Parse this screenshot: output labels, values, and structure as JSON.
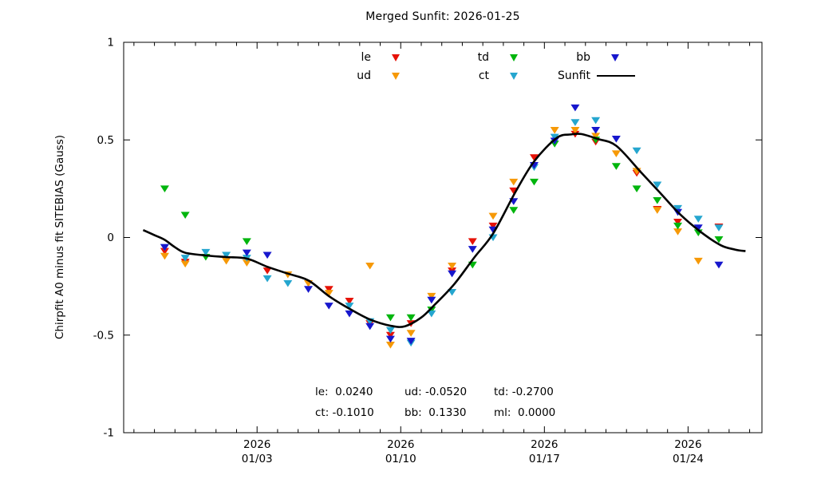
{
  "title": "Merged Sunfit: 2026-01-25",
  "legend": {
    "items": [
      {
        "label": "le",
        "color": "#e61207",
        "type": "triangle-down"
      },
      {
        "label": "ud",
        "color": "#f69907",
        "type": "triangle-down"
      },
      {
        "label": "td",
        "color": "#00b50d",
        "type": "triangle-down"
      },
      {
        "label": "ct",
        "color": "#25a6cf",
        "type": "triangle-down"
      },
      {
        "label": "bb",
        "color": "#1717cd",
        "type": "triangle-down"
      },
      {
        "label": "Sunfit",
        "color": "#000000",
        "type": "line"
      }
    ]
  },
  "fit_stats": {
    "rows": [
      [
        "le:  0.0240",
        "ud: -0.0520",
        "td: -0.2700"
      ],
      [
        "ct: -0.1010",
        "bb:  0.1330",
        "ml:  0.0000"
      ]
    ]
  },
  "chart_data": {
    "type": "scatter",
    "title": "Merged Sunfit: 2026-01-25",
    "xlabel": "",
    "ylabel": "Chirpfit A0 minus fit SITEBIAS (Gauss)",
    "ylim": [
      -1,
      1
    ],
    "xlim_days": [
      -3.5,
      27.6
    ],
    "grid": false,
    "legend_position": "top-center-inside",
    "yticks": [
      {
        "v": 1,
        "label": "1"
      },
      {
        "v": 0.5,
        "label": "0.5"
      },
      {
        "v": 0,
        "label": "0"
      },
      {
        "v": -0.5,
        "label": "-0.5"
      },
      {
        "v": -1,
        "label": "-1"
      }
    ],
    "xticks_major": [
      {
        "day": 3,
        "line1": "2026",
        "line2": "01/03"
      },
      {
        "day": 10,
        "line1": "2026",
        "line2": "01/10"
      },
      {
        "day": 17,
        "line1": "2026",
        "line2": "01/17"
      },
      {
        "day": 24,
        "line1": "2026",
        "line2": "01/24"
      }
    ],
    "xtick_minor_days": {
      "from": -3,
      "to": 27,
      "step": 1
    },
    "series": [
      {
        "name": "le",
        "color": "#e61207",
        "marker": "triangle-down",
        "points": [
          [
            -1.5,
            -0.07
          ],
          [
            -0.5,
            -0.125
          ],
          [
            3.5,
            -0.17
          ],
          [
            6.5,
            -0.265
          ],
          [
            7.5,
            -0.325
          ],
          [
            8.5,
            -0.44
          ],
          [
            9.5,
            -0.5
          ],
          [
            10.5,
            -0.44
          ],
          [
            12.5,
            -0.17
          ],
          [
            13.5,
            -0.02
          ],
          [
            14.5,
            0.06
          ],
          [
            15.5,
            0.24
          ],
          [
            16.5,
            0.41
          ],
          [
            18.5,
            0.53
          ],
          [
            19.5,
            0.49
          ],
          [
            21.5,
            0.33
          ],
          [
            22.5,
            0.145
          ],
          [
            23.5,
            0.08
          ],
          [
            25.5,
            0.055
          ]
        ]
      },
      {
        "name": "ud",
        "color": "#f69907",
        "marker": "triangle-down",
        "points": [
          [
            -1.5,
            -0.095
          ],
          [
            -0.5,
            -0.135
          ],
          [
            1.5,
            -0.12
          ],
          [
            2.5,
            -0.13
          ],
          [
            4.5,
            -0.19
          ],
          [
            5.5,
            -0.235
          ],
          [
            6.5,
            -0.285
          ],
          [
            8.5,
            -0.145
          ],
          [
            9.5,
            -0.55
          ],
          [
            10.5,
            -0.49
          ],
          [
            11.5,
            -0.3
          ],
          [
            12.5,
            -0.145
          ],
          [
            14.5,
            0.11
          ],
          [
            15.5,
            0.285
          ],
          [
            17.5,
            0.55
          ],
          [
            18.5,
            0.55
          ],
          [
            19.5,
            0.52
          ],
          [
            20.5,
            0.43
          ],
          [
            21.5,
            0.34
          ],
          [
            22.5,
            0.14
          ],
          [
            23.5,
            0.03
          ],
          [
            24.5,
            -0.12
          ]
        ]
      },
      {
        "name": "td",
        "color": "#00b50d",
        "marker": "triangle-down",
        "points": [
          [
            -1.5,
            0.25
          ],
          [
            -0.5,
            0.115
          ],
          [
            0.5,
            -0.1
          ],
          [
            2.5,
            -0.02
          ],
          [
            9.5,
            -0.41
          ],
          [
            10.5,
            -0.41
          ],
          [
            11.5,
            -0.37
          ],
          [
            13.5,
            -0.14
          ],
          [
            15.5,
            0.14
          ],
          [
            16.5,
            0.285
          ],
          [
            17.5,
            0.48
          ],
          [
            19.5,
            0.5
          ],
          [
            20.5,
            0.365
          ],
          [
            21.5,
            0.25
          ],
          [
            22.5,
            0.19
          ],
          [
            23.5,
            0.06
          ],
          [
            24.5,
            0.025
          ],
          [
            25.5,
            -0.01
          ]
        ]
      },
      {
        "name": "ct",
        "color": "#25a6cf",
        "marker": "triangle-down",
        "points": [
          [
            -1.5,
            -0.05
          ],
          [
            -0.5,
            -0.105
          ],
          [
            0.5,
            -0.075
          ],
          [
            1.5,
            -0.09
          ],
          [
            2.5,
            -0.105
          ],
          [
            3.5,
            -0.21
          ],
          [
            4.5,
            -0.235
          ],
          [
            7.5,
            -0.35
          ],
          [
            8.5,
            -0.43
          ],
          [
            9.5,
            -0.475
          ],
          [
            10.5,
            -0.54
          ],
          [
            11.5,
            -0.39
          ],
          [
            12.5,
            -0.28
          ],
          [
            14.5,
            0.0
          ],
          [
            16.5,
            0.36
          ],
          [
            17.5,
            0.515
          ],
          [
            18.5,
            0.59
          ],
          [
            19.5,
            0.6
          ],
          [
            21.5,
            0.445
          ],
          [
            22.5,
            0.27
          ],
          [
            23.5,
            0.15
          ],
          [
            24.5,
            0.095
          ],
          [
            25.5,
            0.05
          ]
        ]
      },
      {
        "name": "bb",
        "color": "#1717cd",
        "marker": "triangle-down",
        "points": [
          [
            -1.5,
            -0.05
          ],
          [
            2.5,
            -0.078
          ],
          [
            3.5,
            -0.09
          ],
          [
            5.5,
            -0.265
          ],
          [
            6.5,
            -0.35
          ],
          [
            7.5,
            -0.39
          ],
          [
            8.5,
            -0.455
          ],
          [
            9.5,
            -0.52
          ],
          [
            10.5,
            -0.53
          ],
          [
            11.5,
            -0.32
          ],
          [
            12.5,
            -0.185
          ],
          [
            13.5,
            -0.06
          ],
          [
            14.5,
            0.04
          ],
          [
            15.5,
            0.185
          ],
          [
            16.5,
            0.37
          ],
          [
            17.5,
            0.495
          ],
          [
            18.5,
            0.665
          ],
          [
            19.5,
            0.55
          ],
          [
            20.5,
            0.505
          ],
          [
            23.5,
            0.13
          ],
          [
            24.5,
            0.05
          ],
          [
            25.5,
            -0.14
          ]
        ]
      }
    ],
    "fit_line": {
      "name": "Sunfit",
      "color": "#000000",
      "points": [
        [
          -2.55,
          0.038
        ],
        [
          -2.0,
          0.012
        ],
        [
          -1.5,
          -0.012
        ],
        [
          -1.0,
          -0.05
        ],
        [
          -0.5,
          -0.078
        ],
        [
          0.5,
          -0.092
        ],
        [
          1.5,
          -0.1
        ],
        [
          2.5,
          -0.108
        ],
        [
          3.5,
          -0.15
        ],
        [
          4.5,
          -0.185
        ],
        [
          5.5,
          -0.22
        ],
        [
          6.5,
          -0.3
        ],
        [
          7.5,
          -0.365
        ],
        [
          8.5,
          -0.42
        ],
        [
          9.5,
          -0.452
        ],
        [
          10.2,
          -0.455
        ],
        [
          11.0,
          -0.41
        ],
        [
          11.6,
          -0.35
        ],
        [
          12.6,
          -0.24
        ],
        [
          13.6,
          -0.1
        ],
        [
          14.5,
          0.02
        ],
        [
          15.6,
          0.235
        ],
        [
          16.5,
          0.39
        ],
        [
          17.6,
          0.51
        ],
        [
          18.3,
          0.528
        ],
        [
          18.8,
          0.53
        ],
        [
          19.6,
          0.505
        ],
        [
          20.5,
          0.47
        ],
        [
          21.7,
          0.335
        ],
        [
          22.6,
          0.233
        ],
        [
          23.6,
          0.12
        ],
        [
          24.6,
          0.03
        ],
        [
          25.6,
          -0.04
        ],
        [
          26.3,
          -0.062
        ],
        [
          26.8,
          -0.07
        ]
      ]
    }
  }
}
